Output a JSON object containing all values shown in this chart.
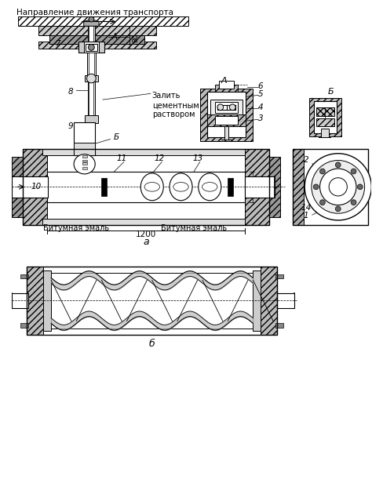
{
  "bg_color": "#ffffff",
  "label_top": "Направление движения транспорта",
  "label_cement": "Залить\nцементным\nраствором",
  "label_bitumen_left": "Битумная эмаль",
  "label_bitumen_right": "Битумная эмаль",
  "label_dim": "1200",
  "label_a": "а",
  "label_b": "б",
  "label_80": "80",
  "figsize": [
    4.74,
    6.39
  ],
  "dpi": 100
}
